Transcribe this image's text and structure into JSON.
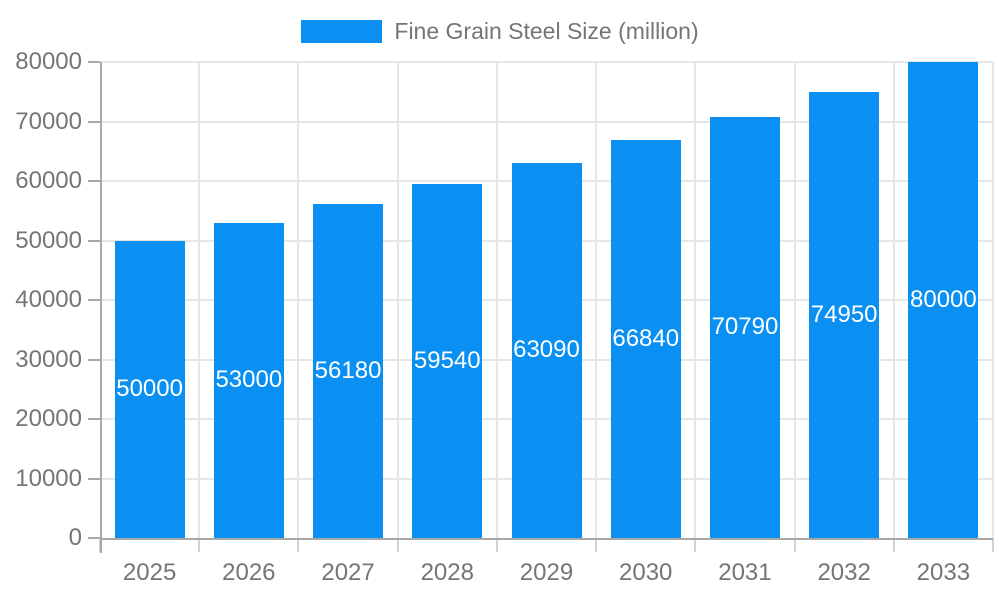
{
  "colors": {
    "accent": "#0a90f2",
    "muted": "#757575",
    "grid": "#e6e6e6",
    "axisline": "#a8a8a8",
    "tick": "#d2d2d2",
    "bar_value_text": "#ffffff",
    "background": "#ffffff"
  },
  "chart_data": {
    "type": "bar",
    "title": "Fine Grain Steel Size (million)",
    "categories": [
      "2025",
      "2026",
      "2027",
      "2028",
      "2029",
      "2030",
      "2031",
      "2032",
      "2033"
    ],
    "values": [
      50000,
      53000,
      56180,
      59540,
      63090,
      66840,
      70790,
      74950,
      80000
    ],
    "bar_value_labels": [
      "50000",
      "53000",
      "56180",
      "59540",
      "63090",
      "66840",
      "70790",
      "74950",
      "80000"
    ],
    "xlabel": "",
    "ylabel": "",
    "ylim": [
      0,
      80000
    ],
    "yticks": [
      0,
      10000,
      20000,
      30000,
      40000,
      50000,
      60000,
      70000,
      80000
    ],
    "ytick_labels": [
      "0",
      "10000",
      "20000",
      "30000",
      "40000",
      "50000",
      "60000",
      "70000",
      "80000"
    ],
    "grid": true,
    "legend_position": "top",
    "value_label_position": "center-inside"
  }
}
